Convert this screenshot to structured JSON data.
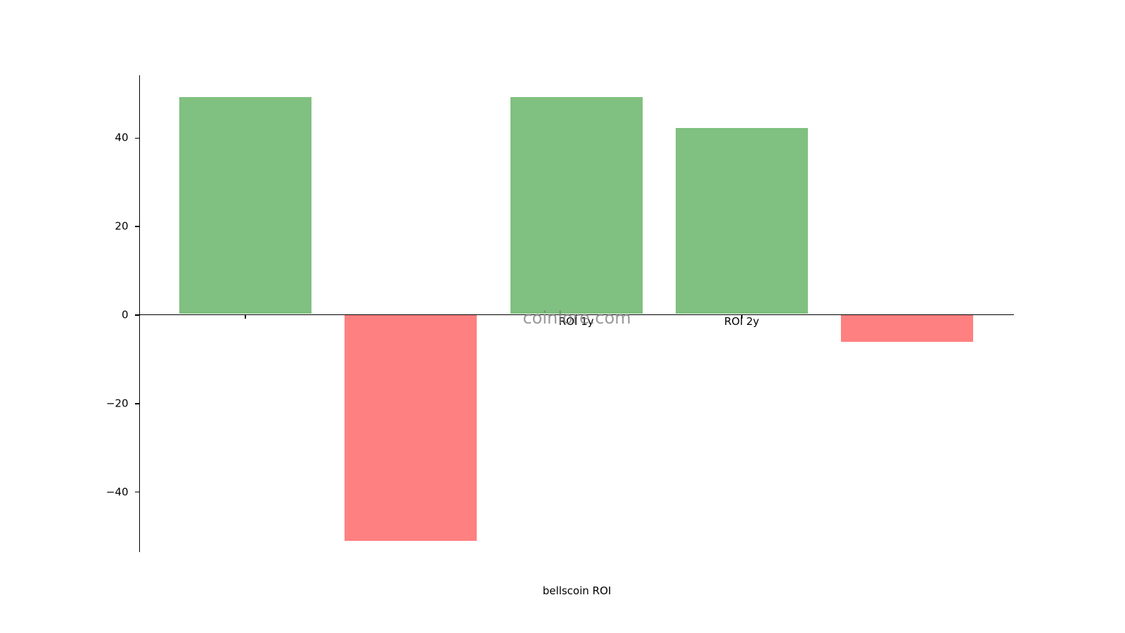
{
  "page": {
    "background_color": "#ffffff"
  },
  "watermark": {
    "text": "coinlore.com",
    "color": "#787878"
  },
  "chart_data": {
    "type": "bar",
    "title": "bellscoin ROI",
    "categories": [
      "",
      "",
      "ROI 1y",
      "ROI 2y",
      ""
    ],
    "values": [
      49,
      -51,
      49,
      42,
      -6
    ],
    "series": [
      {
        "name": "bellscoin ROI",
        "values": [
          49,
          -51,
          49,
          42,
          -6
        ]
      }
    ],
    "bar_colors": [
      "#80c080",
      "#ff8080",
      "#80c080",
      "#80c080",
      "#ff8080"
    ],
    "positive_color": "#80c080",
    "negative_color": "#ff8080",
    "xlabel": "bellscoin ROI",
    "ylabel": "",
    "ylim": [
      -53.6,
      54.2
    ],
    "yticks": [
      40,
      20,
      0,
      -20,
      -40
    ],
    "ytick_labels": [
      "40",
      "20",
      "0",
      "−20",
      "−40"
    ],
    "x_ticks_visible_at": [
      0,
      2,
      3
    ],
    "grid": false,
    "legend": "none",
    "axis_color": "#000000"
  }
}
